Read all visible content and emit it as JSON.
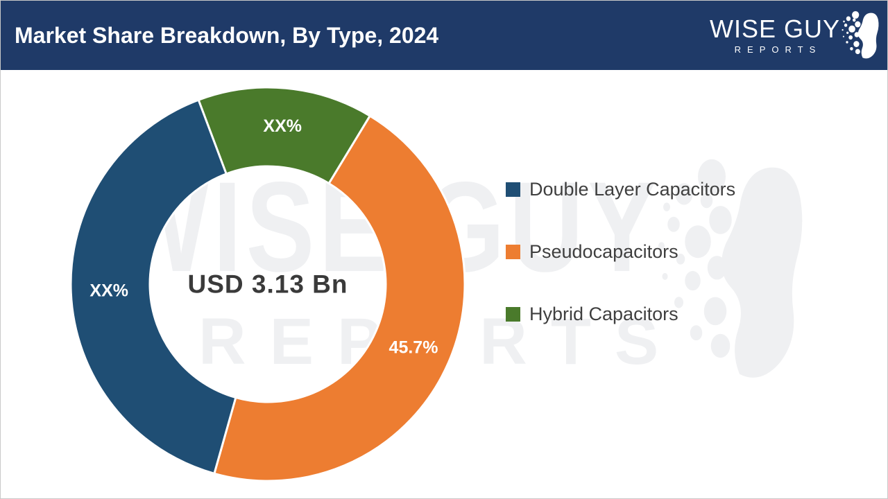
{
  "header": {
    "title": "Market Share Breakdown, By Type, 2024",
    "bg_color": "#1f3a68",
    "logo": {
      "wordmark": "WISE GUY",
      "subtitle": "REPORTS"
    }
  },
  "watermark": {
    "line1": "WISE GUY",
    "line2": "REPORTS"
  },
  "chart_data": {
    "type": "pie",
    "subtype": "donut",
    "title": "Market Share Breakdown, By Type, 2024",
    "center_label": "USD 3.13 Bn",
    "legend_position": "right",
    "start_angle_deg": -20.6,
    "draw_order_indices": [
      2,
      1,
      0
    ],
    "segments": [
      {
        "label": "Double Layer Capacitors",
        "display_value": "XX%",
        "value_pct": 39.9,
        "color": "#1f4e74"
      },
      {
        "label": "Pseudocapacitors",
        "display_value": "45.7%",
        "value_pct": 45.7,
        "color": "#ed7d31"
      },
      {
        "label": "Hybrid Capacitors",
        "display_value": "XX%",
        "value_pct": 14.4,
        "color": "#4a7a2b"
      }
    ]
  }
}
